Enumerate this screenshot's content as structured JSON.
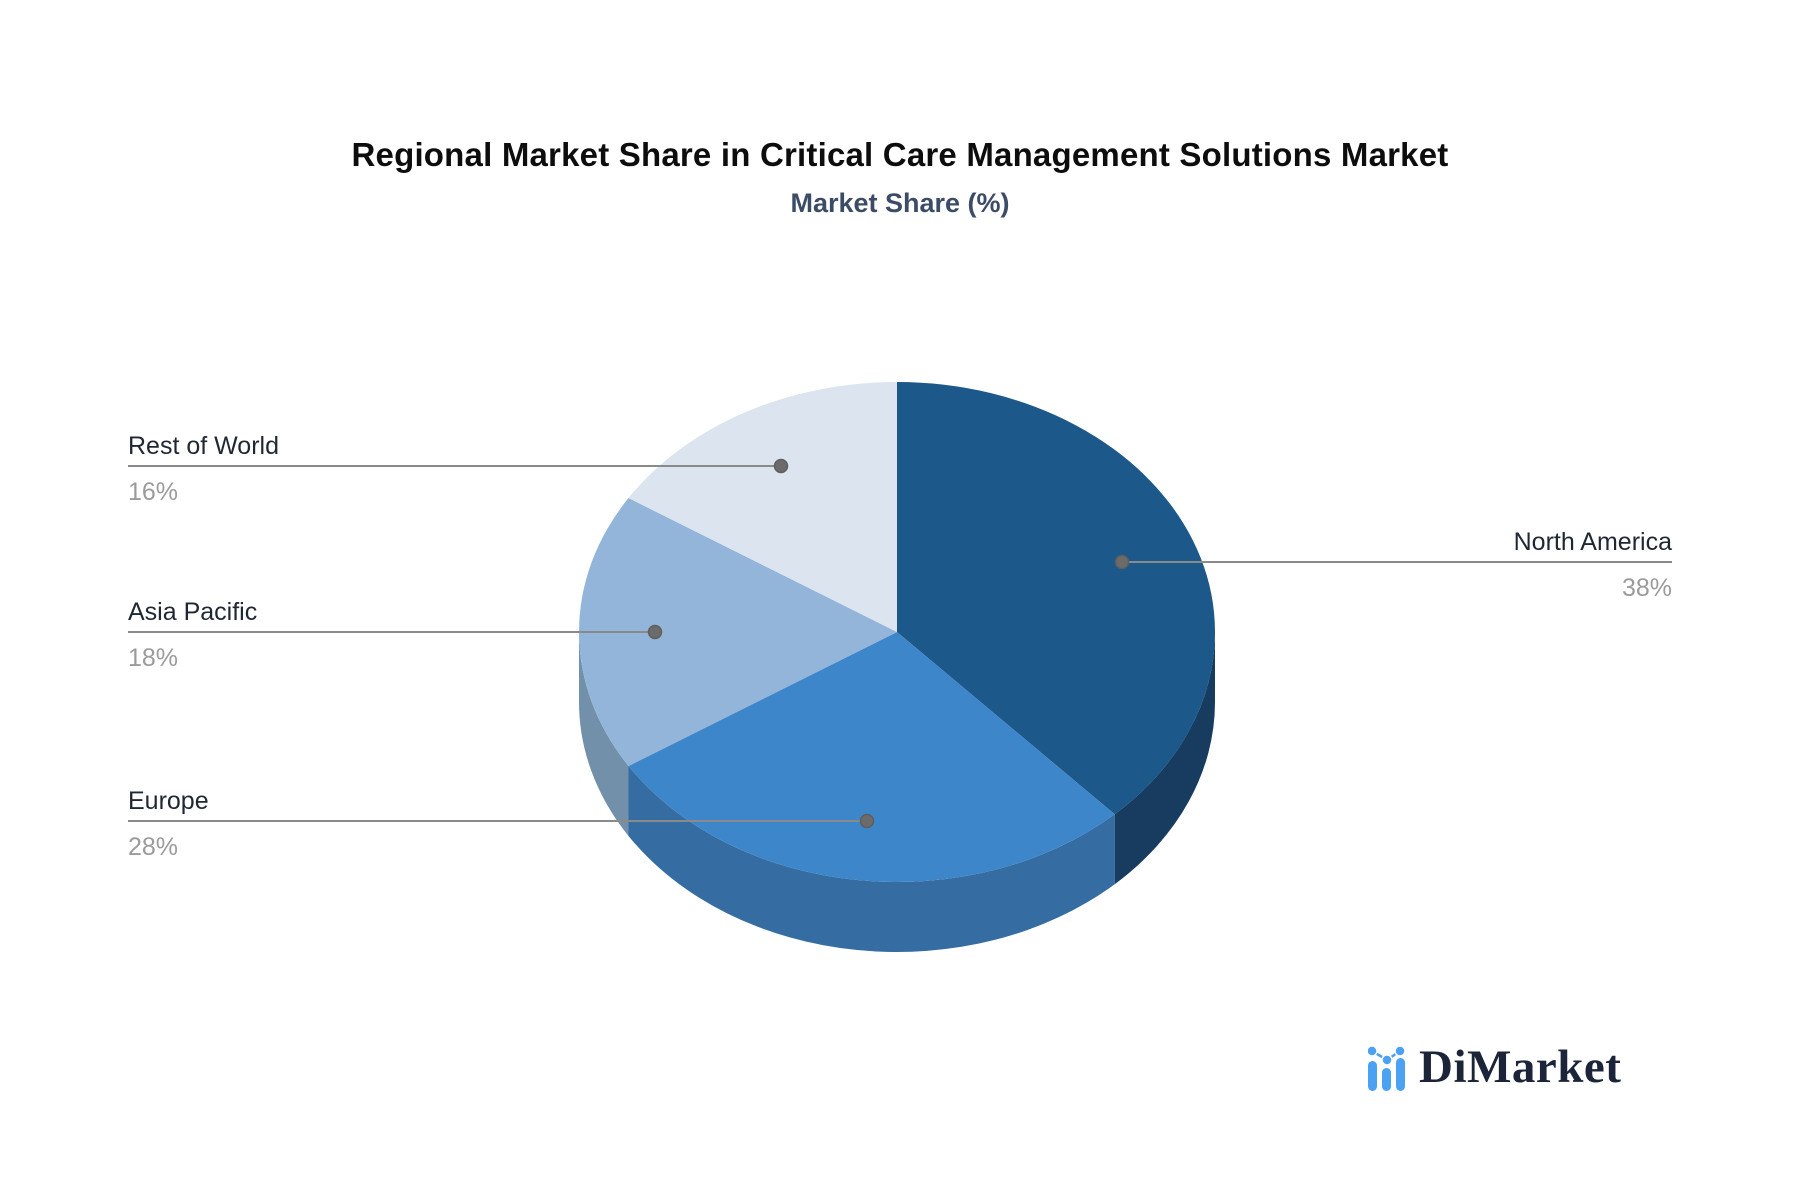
{
  "title": "Regional Market Share in Critical Care Management Solutions Market",
  "subtitle": "Market Share (%)",
  "watermark": {
    "text": "DiMarket"
  },
  "chart_data": {
    "type": "pie",
    "style": "3d",
    "title": "Regional Market Share in Critical Care Management Solutions Market",
    "subtitle": "Market Share (%)",
    "unit": "%",
    "start_angle_deg": 0,
    "direction": "clockwise",
    "legend_position": "none",
    "label_style": "outside leader lines, name above rule and percent below",
    "slices": [
      {
        "label": "North America",
        "value": 38,
        "display_value": "38%",
        "color": "#1d588a",
        "side_color": "#173c60",
        "label_side": "right"
      },
      {
        "label": "Europe",
        "value": 28,
        "display_value": "28%",
        "color": "#3e86ca",
        "side_color": "#356ca1",
        "label_side": "left"
      },
      {
        "label": "Asia Pacific",
        "value": 18,
        "display_value": "18%",
        "color": "#93b5da",
        "side_color": "#7290aa",
        "label_side": "left"
      },
      {
        "label": "Rest of World",
        "value": 16,
        "display_value": "16%",
        "color": "#dce4ef",
        "side_color": "#b9c4d4",
        "label_side": "left"
      }
    ],
    "colors": {
      "leader_line": "#8a8a8a",
      "leader_dot": "#6b6b6b",
      "label_text": "#1f2733",
      "percent_text": "#9b9b9b"
    }
  }
}
